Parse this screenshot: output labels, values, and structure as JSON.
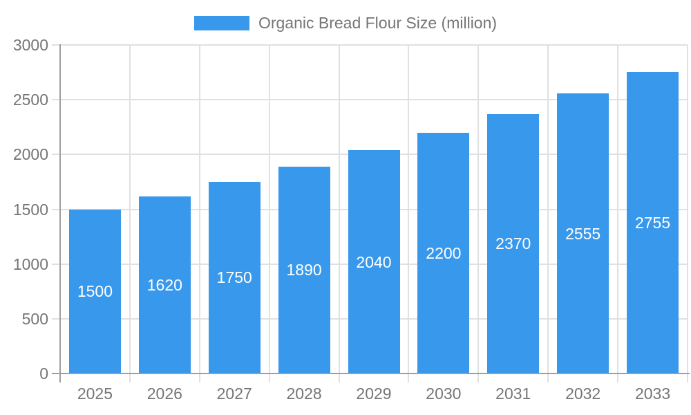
{
  "chart_data": {
    "type": "bar",
    "title": "",
    "legend": {
      "position": "top"
    },
    "categories": [
      "2025",
      "2026",
      "2027",
      "2028",
      "2029",
      "2030",
      "2031",
      "2032",
      "2033"
    ],
    "series": [
      {
        "name": "Organic Bread Flour Size (million)",
        "values": [
          1500,
          1620,
          1750,
          1890,
          2040,
          2200,
          2370,
          2555,
          2755
        ]
      }
    ],
    "xlabel": "",
    "ylabel": "",
    "ylim": [
      0,
      3000
    ],
    "y_tick_step": 500,
    "y_tick_labels": [
      "0",
      "500",
      "1000",
      "1500",
      "2000",
      "2500",
      "3000"
    ],
    "grid": true,
    "show_value_labels": true,
    "colors": {
      "bar": "#3898EC",
      "value_label": "#FFFFFF",
      "axis_text": "#757575",
      "legend_text": "#757575",
      "axis_line": "#9E9E9E",
      "gridline": "#E0E0E0",
      "background": "#FFFFFF"
    }
  }
}
